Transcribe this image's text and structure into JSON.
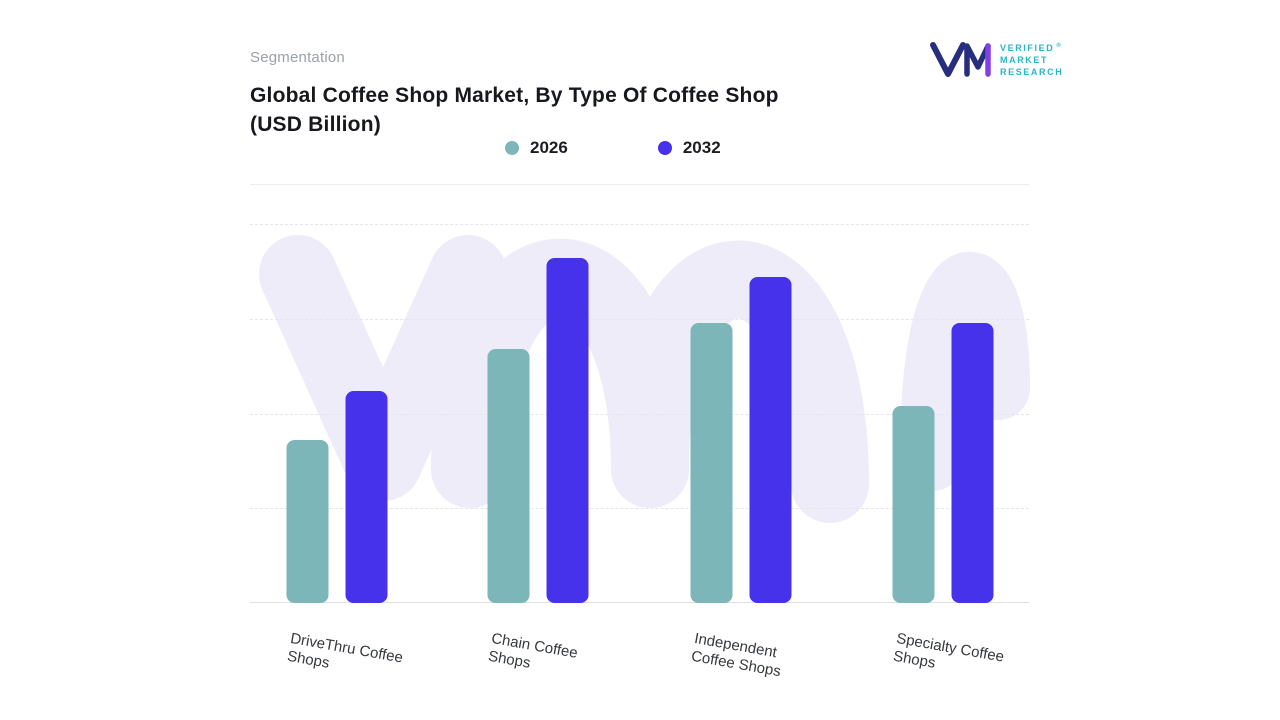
{
  "header": {
    "eyebrow": "Segmentation",
    "title_line1": "Global Coffee Shop Market, By Type Of Coffee Shop",
    "title_line2": "(USD Billion)"
  },
  "logo": {
    "brand_lines": [
      "VERIFIED",
      "MARKET",
      "RESEARCH"
    ],
    "registered_mark": "®",
    "text_color": "#2ab5c5",
    "mark_navy": "#272e7e",
    "mark_purple": "#8040e8"
  },
  "watermark": {
    "color": "#edecf8"
  },
  "legend": [
    {
      "label": "2026",
      "color": "#7db6b8"
    },
    {
      "label": "2032",
      "color": "#4732ec"
    }
  ],
  "chart_data": {
    "type": "bar",
    "title": "Global Coffee Shop Market, By Type Of Coffee Shop (USD Billion)",
    "categories": [
      "DriveThru Coffee Shops",
      "Chain Coffee Shops",
      "Independent Coffee Shops",
      "Specialty Coffee Shops"
    ],
    "category_label_lines": [
      [
        "DriveThru Coffee",
        "Shops"
      ],
      [
        "Chain Coffee",
        "Shops"
      ],
      [
        "Independent",
        "Coffee Shops"
      ],
      [
        "Specialty Coffee",
        "Shops"
      ]
    ],
    "series": [
      {
        "name": "2026",
        "color": "#7db6b8",
        "values": [
          43,
          67,
          74,
          52
        ]
      },
      {
        "name": "2032",
        "color": "#4732ec",
        "values": [
          56,
          91,
          86,
          74
        ]
      }
    ],
    "ylim": [
      0,
      100
    ],
    "y_axis_labels_visible": false,
    "grid": "horizontal-dashed",
    "legend_position": "top"
  }
}
